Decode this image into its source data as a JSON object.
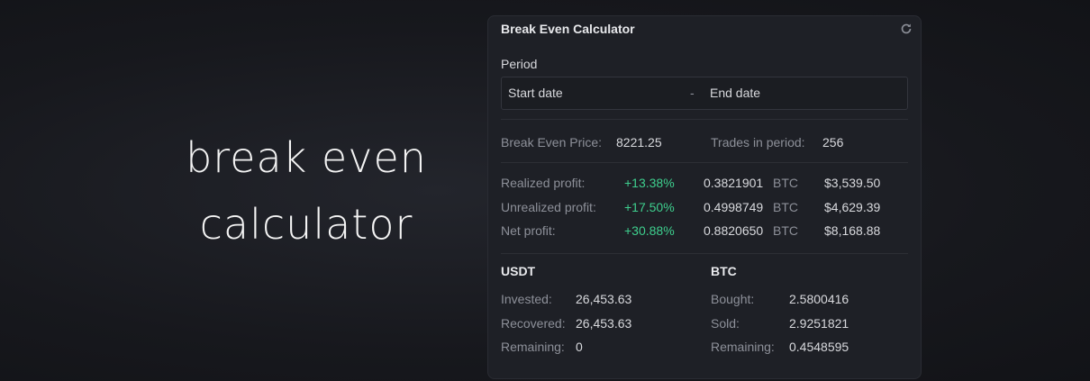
{
  "hero": {
    "lines": [
      "break even",
      "calculator"
    ]
  },
  "panel": {
    "title": "Break Even Calculator",
    "period": {
      "label": "Period",
      "start": "Start date",
      "separator": "-",
      "end": "End date"
    },
    "summary": [
      {
        "label": "Break Even Price:",
        "value": "8221.25"
      },
      {
        "label": "Trades in period:",
        "value": "256"
      }
    ],
    "profits": [
      {
        "label": "Realized profit:",
        "percent": "+13.38%",
        "btc": "0.3821901",
        "unit": "BTC",
        "usd": "$3,539.50"
      },
      {
        "label": "Unrealized profit:",
        "percent": "+17.50%",
        "btc": "0.4998749",
        "unit": "BTC",
        "usd": "$4,629.39"
      },
      {
        "label": "Net profit:",
        "percent": "+30.88%",
        "btc": "0.8820650",
        "unit": "BTC",
        "usd": "$8,168.88"
      }
    ],
    "usdt": {
      "title": "USDT",
      "rows": [
        {
          "label": "Invested:",
          "value": "26,453.63"
        },
        {
          "label": "Recovered:",
          "value": "26,453.63"
        },
        {
          "label": "Remaining:",
          "value": "0"
        }
      ]
    },
    "btc": {
      "title": "BTC",
      "rows": [
        {
          "label": "Bought:",
          "value": "2.5800416"
        },
        {
          "label": "Sold:",
          "value": "2.9251821"
        },
        {
          "label": "Remaining:",
          "value": "0.4548595"
        }
      ]
    }
  }
}
